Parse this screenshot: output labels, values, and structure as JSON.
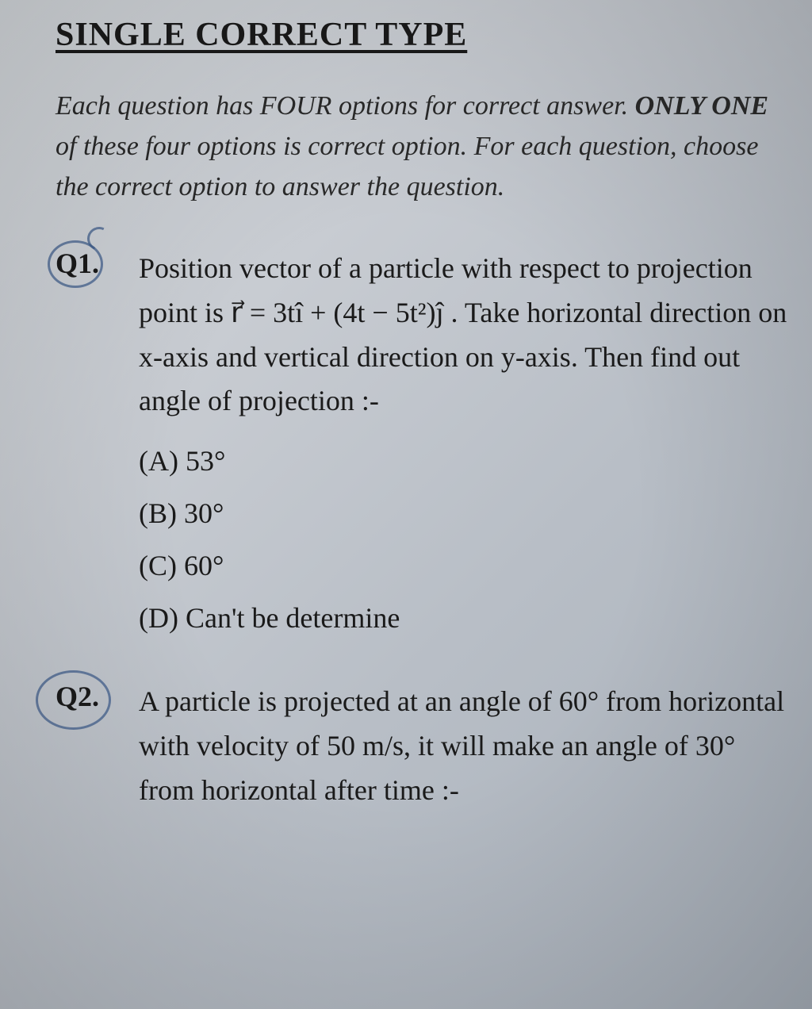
{
  "section_title": "SINGLE CORRECT TYPE",
  "instructions": {
    "part1": "Each question has FOUR options for correct answer. ",
    "bold": "ONLY ONE",
    "part2": " of these four options is correct option. For each question, choose the correct option to answer the question."
  },
  "q1": {
    "number": "Q1.",
    "text_part1": "Position vector of a particle with respect to projection point is ",
    "equation": "r⃗ = 3tî + (4t − 5t²)ĵ",
    "text_part2": " . Take horizontal direction on x-axis and vertical direction on y-axis. Then find out angle of projection :-",
    "options": {
      "a": "(A) 53°",
      "b": "(B) 30°",
      "c": "(C) 60°",
      "d": "(D) Can't be determine"
    }
  },
  "q2": {
    "number": "Q2.",
    "text": "A particle is projected at an angle of 60° from horizontal with velocity of 50 m/s, it will make an angle of 30° from horizontal after time :-"
  },
  "styling": {
    "background_gradient_start": "#d8dce0",
    "background_gradient_end": "#a8b0ba",
    "text_color": "#2a2a2a",
    "heading_color": "#1a1a1a",
    "circle_color": "#3a5a8a",
    "title_fontsize": 42,
    "body_fontsize": 36,
    "instruction_fontsize": 34,
    "font_family": "Georgia, Times New Roman, serif"
  }
}
